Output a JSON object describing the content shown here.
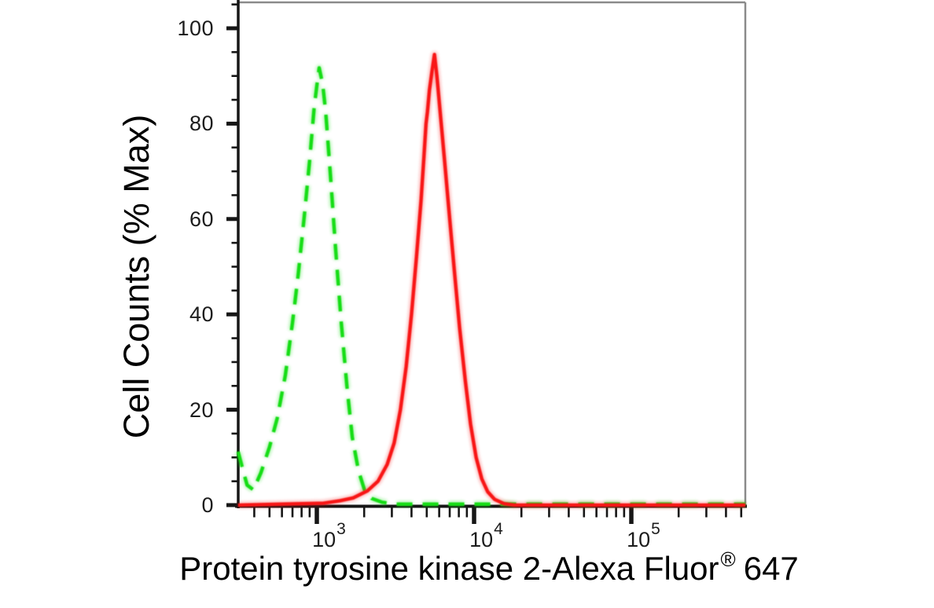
{
  "figure": {
    "background_color": "#ffffff",
    "text_color": "#1c1c1c",
    "axis_color": "#161616",
    "frame_color": "#8a8a8a"
  },
  "chart_data": {
    "type": "line",
    "subtype": "flow-cytometry-histogram",
    "title": "",
    "ylabel": "Cell Counts (% Max)",
    "xlabel": {
      "main": "Protein tyrosine kinase 2-Alexa Fluor",
      "registered_mark": "®",
      "suffix": "647"
    },
    "grid": false,
    "legend": "none",
    "y_axis": {
      "min": 0,
      "max": 100,
      "major_ticks": [
        0,
        20,
        40,
        60,
        80,
        100
      ],
      "minor_tick_step": 5
    },
    "x_axis": {
      "scale": "log10",
      "min": 316,
      "max": 531000,
      "tick_base": "10",
      "labeled_decade_exponents": [
        3,
        4,
        5
      ]
    },
    "series": [
      {
        "name": "green-dashed-curve",
        "style": "dashed",
        "color": "#12DD12",
        "peak": {
          "x": 1035,
          "y": 91.5
        },
        "points": [
          [
            316,
            11
          ],
          [
            340,
            7
          ],
          [
            360,
            4
          ],
          [
            395,
            3
          ],
          [
            440,
            6.5
          ],
          [
            500,
            12
          ],
          [
            560,
            18
          ],
          [
            630,
            27
          ],
          [
            700,
            38
          ],
          [
            760,
            48
          ],
          [
            830,
            60
          ],
          [
            900,
            72
          ],
          [
            960,
            83
          ],
          [
            1010,
            89
          ],
          [
            1035,
            91.5
          ],
          [
            1090,
            88
          ],
          [
            1140,
            82
          ],
          [
            1220,
            69
          ],
          [
            1320,
            53
          ],
          [
            1430,
            38
          ],
          [
            1550,
            25
          ],
          [
            1680,
            14
          ],
          [
            1840,
            7
          ],
          [
            2010,
            3
          ],
          [
            2230,
            1.2
          ],
          [
            2600,
            0.4
          ],
          [
            3200,
            0
          ],
          [
            531000,
            0
          ]
        ]
      },
      {
        "name": "red-solid-curve",
        "style": "solid",
        "color": "#F81616",
        "peak": {
          "x": 5600,
          "y": 94.5
        },
        "points": [
          [
            316,
            0
          ],
          [
            1100,
            0.4
          ],
          [
            1400,
            0.9
          ],
          [
            1700,
            1.5
          ],
          [
            2100,
            3
          ],
          [
            2450,
            5
          ],
          [
            2800,
            8.5
          ],
          [
            3100,
            13
          ],
          [
            3400,
            20
          ],
          [
            3700,
            29
          ],
          [
            4000,
            40
          ],
          [
            4300,
            52
          ],
          [
            4600,
            64
          ],
          [
            4800,
            73
          ],
          [
            4950,
            80
          ],
          [
            5050,
            82.5
          ],
          [
            5200,
            87
          ],
          [
            5400,
            91
          ],
          [
            5600,
            94.5
          ],
          [
            5800,
            90
          ],
          [
            6100,
            82
          ],
          [
            6500,
            72
          ],
          [
            7000,
            60
          ],
          [
            7500,
            49
          ],
          [
            8100,
            37
          ],
          [
            8800,
            26
          ],
          [
            9500,
            17
          ],
          [
            10300,
            10
          ],
          [
            11200,
            5.5
          ],
          [
            12200,
            2.8
          ],
          [
            13500,
            1.2
          ],
          [
            15500,
            0.3
          ],
          [
            18000,
            0
          ],
          [
            531000,
            0
          ]
        ]
      }
    ]
  }
}
